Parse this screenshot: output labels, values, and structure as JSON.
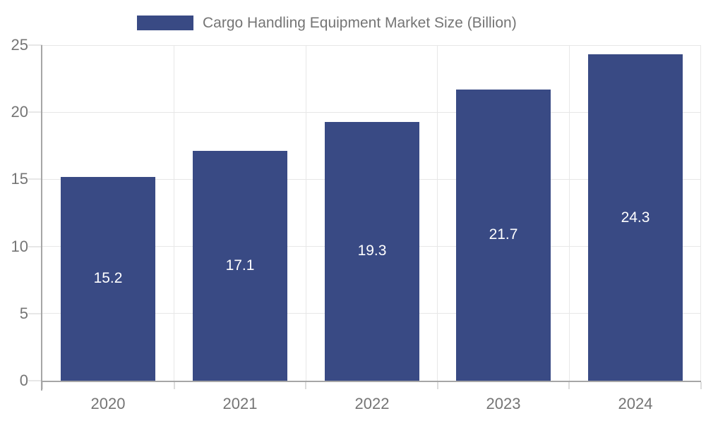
{
  "chart_data": {
    "type": "bar",
    "title": "Cargo Handling Equipment Market Size (Billion)",
    "categories": [
      "2020",
      "2021",
      "2022",
      "2023",
      "2024"
    ],
    "values": [
      15.2,
      17.1,
      19.3,
      21.7,
      24.3
    ],
    "bar_labels": [
      "15.2",
      "17.1",
      "19.3",
      "21.7",
      "24.3"
    ],
    "xlabel": "",
    "ylabel": "",
    "ylim": [
      0,
      25
    ],
    "yticks": [
      0,
      5,
      10,
      15,
      20,
      25
    ],
    "grid": true,
    "legend_position": "top-center",
    "colors": {
      "bar": "#394a84",
      "bar_label": "#ffffff",
      "axis_text": "#757575",
      "axis_line": "#a6a6a6",
      "gridline": "#e7e7e7",
      "tick": "#dcdcdc",
      "background": "#ffffff"
    }
  }
}
